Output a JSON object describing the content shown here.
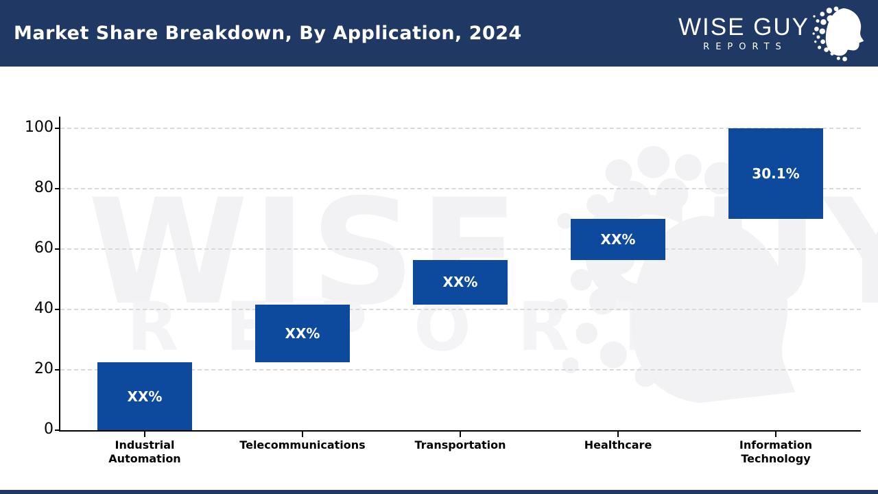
{
  "header": {
    "title": "Market Share Breakdown, By Application, 2024",
    "logo": {
      "line1": "WISE GUY",
      "line2": "REPORTS"
    },
    "bg_color": "#1f3864"
  },
  "watermark": {
    "line1": "WISE GUY",
    "line2": "REPORTS"
  },
  "chart_data": {
    "type": "bar",
    "subtype": "waterfall",
    "title": "Market Share Breakdown, By Application, 2024",
    "categories": [
      "Industrial\nAutomation",
      "Telecommunications",
      "Transportation",
      "Healthcare",
      "Information\nTechnology"
    ],
    "segments": [
      {
        "category": "Industrial Automation",
        "label": "XX%",
        "start": 0,
        "end": 22.4
      },
      {
        "category": "Telecommunications",
        "label": "XX%",
        "start": 22.4,
        "end": 41.6
      },
      {
        "category": "Transportation",
        "label": "XX%",
        "start": 41.6,
        "end": 56.4
      },
      {
        "category": "Healthcare",
        "label": "XX%",
        "start": 56.4,
        "end": 69.9
      },
      {
        "category": "Information Technology",
        "label": "30.1%",
        "start": 69.9,
        "end": 100
      }
    ],
    "yticks": [
      0,
      20,
      40,
      60,
      80,
      100
    ],
    "ylim": [
      0,
      100
    ],
    "xlabel": "",
    "ylabel": "",
    "grid": "horizontal-dashed",
    "legend": "none",
    "bar_color": "#0d4a9e",
    "bar_label_color": "#ffffff",
    "axis_color": "#000000",
    "grid_color": "#d9d9d9"
  }
}
